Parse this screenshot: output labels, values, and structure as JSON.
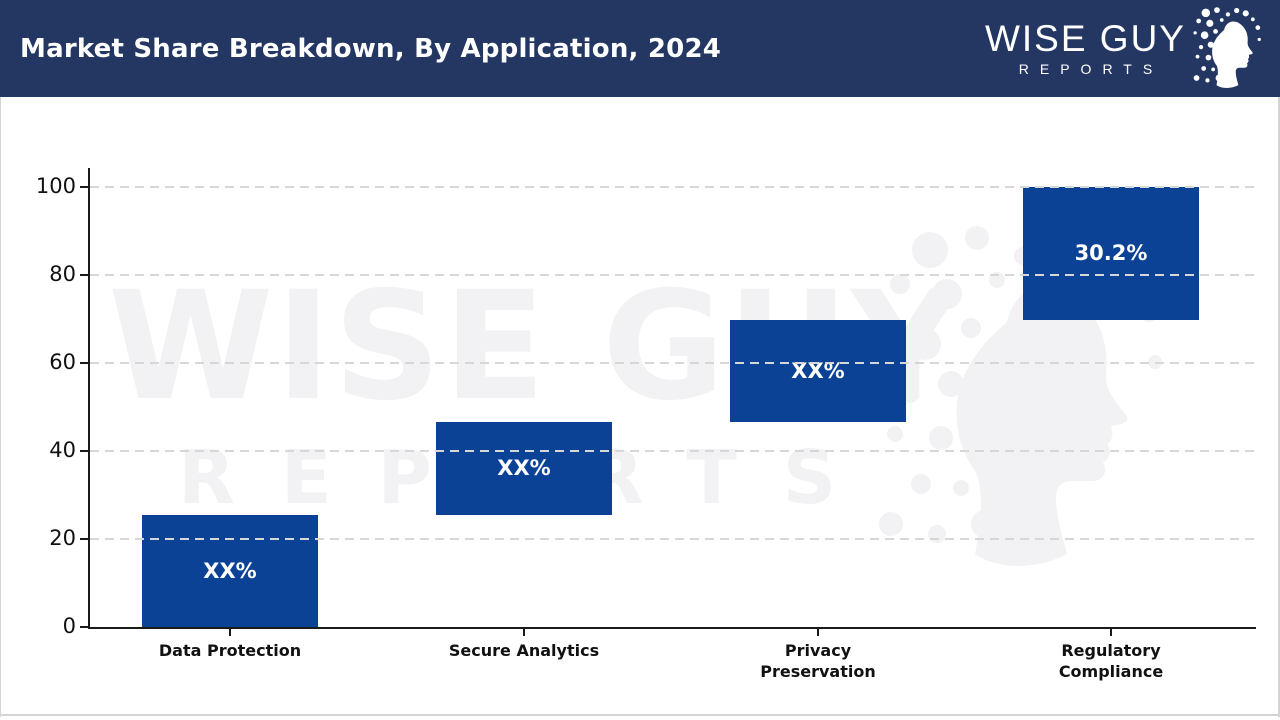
{
  "header": {
    "title": "Market Share Breakdown, By Application, 2024",
    "logo": {
      "line1": "WISE GUY",
      "line2": "REPORTS"
    }
  },
  "watermark": {
    "line1": "WISE GUY",
    "line2": "REPORTS"
  },
  "colors": {
    "header_bg": "#243763",
    "bar_fill": "#0b4296",
    "bar_label_text": "#ffffff",
    "gridline": "#d7d7d7",
    "axis": "#1a1a1a",
    "tick_text": "#111111",
    "watermark": "#f2f2f4"
  },
  "chart_data": {
    "type": "bar",
    "subtype": "waterfall",
    "title": "Market Share Breakdown, By Application, 2024",
    "categories": [
      "Data Protection",
      "Secure Analytics",
      "Privacy\nPreservation",
      "Regulatory\nCompliance"
    ],
    "segments": [
      {
        "category": "Data Protection",
        "start": 0,
        "end": 25.4,
        "label": "XX%"
      },
      {
        "category": "Secure Analytics",
        "start": 25.4,
        "end": 46.7,
        "label": "XX%"
      },
      {
        "category": "Privacy Preservation",
        "start": 46.7,
        "end": 69.8,
        "label": "XX%"
      },
      {
        "category": "Regulatory Compliance",
        "start": 69.8,
        "end": 100.0,
        "label": "30.2%",
        "value": 30.2
      }
    ],
    "yticks": [
      0,
      20,
      40,
      60,
      80,
      100
    ],
    "ylim": [
      0,
      104
    ],
    "xlabel": "",
    "ylabel": "",
    "grid": "dashed-horizontal",
    "legend": "none"
  }
}
